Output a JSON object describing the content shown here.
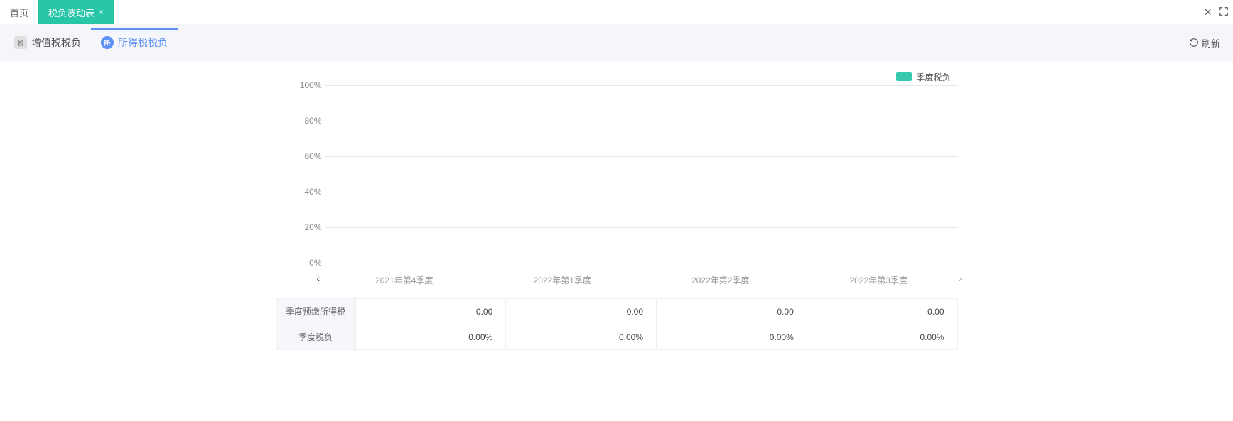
{
  "top_tabs": {
    "home_label": "首页",
    "active_label": "税负波动表"
  },
  "sub_tabs": {
    "vat_label": "增值税税负",
    "income_label": "所得税税负",
    "refresh_label": "刷新"
  },
  "chart": {
    "type": "bar",
    "legend_label": "季度税负",
    "legend_color": "#37c9b0",
    "y_ticks": [
      "0%",
      "20%",
      "40%",
      "60%",
      "80%",
      "100%"
    ],
    "y_positions_pct": [
      100,
      80,
      60,
      40,
      20,
      0
    ],
    "x_categories": [
      "2021年第4季度",
      "2022年第1季度",
      "2022年第2季度",
      "2022年第3季度"
    ],
    "values": [
      0,
      0,
      0,
      0
    ],
    "ylim": [
      0,
      100
    ],
    "grid_color": "#e8e8e8",
    "background_color": "#ffffff"
  },
  "table": {
    "row1_label": "季度预缴所得税",
    "row1_values": [
      "0.00",
      "0.00",
      "0.00",
      "0.00"
    ],
    "row2_label": "季度税负",
    "row2_values": [
      "0.00%",
      "0.00%",
      "0.00%",
      "0.00%"
    ]
  }
}
